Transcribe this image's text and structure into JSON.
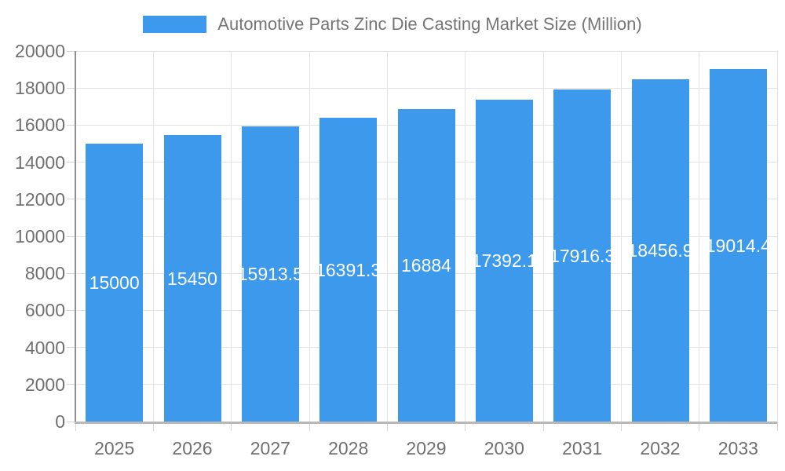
{
  "chart_data": {
    "type": "bar",
    "title": "Automotive Parts Zinc Die Casting Market Size (Million)",
    "legend": {
      "position": "top",
      "entries": [
        "Automotive Parts Zinc Die Casting Market Size (Million)"
      ]
    },
    "categories": [
      "2025",
      "2026",
      "2027",
      "2028",
      "2029",
      "2030",
      "2031",
      "2032",
      "2033"
    ],
    "values": [
      15000,
      15450,
      15913.5,
      16391.3,
      16884,
      17392.1,
      17916.3,
      18456.9,
      19014.4
    ],
    "value_labels": [
      "15000",
      "15450",
      "15913.5",
      "16391.3",
      "16884",
      "17392.1",
      "17916.3",
      "18456.9",
      "19014.4"
    ],
    "xlabel": "",
    "ylabel": "",
    "ylim": [
      0,
      20000
    ],
    "ytick_step": 2000,
    "ytick_labels": [
      "0",
      "2000",
      "4000",
      "6000",
      "8000",
      "10000",
      "12000",
      "14000",
      "16000",
      "18000",
      "20000"
    ],
    "grid": true,
    "colors": {
      "bar": "#3C99EC",
      "text": "#707070",
      "title_text": "#757575",
      "bar_label_text": "#FFFFFF",
      "gridline": "#E3E3E3",
      "y_axis_line": "#8F8F8F",
      "x_axis_line": "#B8B8B8",
      "tick": "#D4D4D4",
      "background": "#FFFFFF"
    }
  }
}
